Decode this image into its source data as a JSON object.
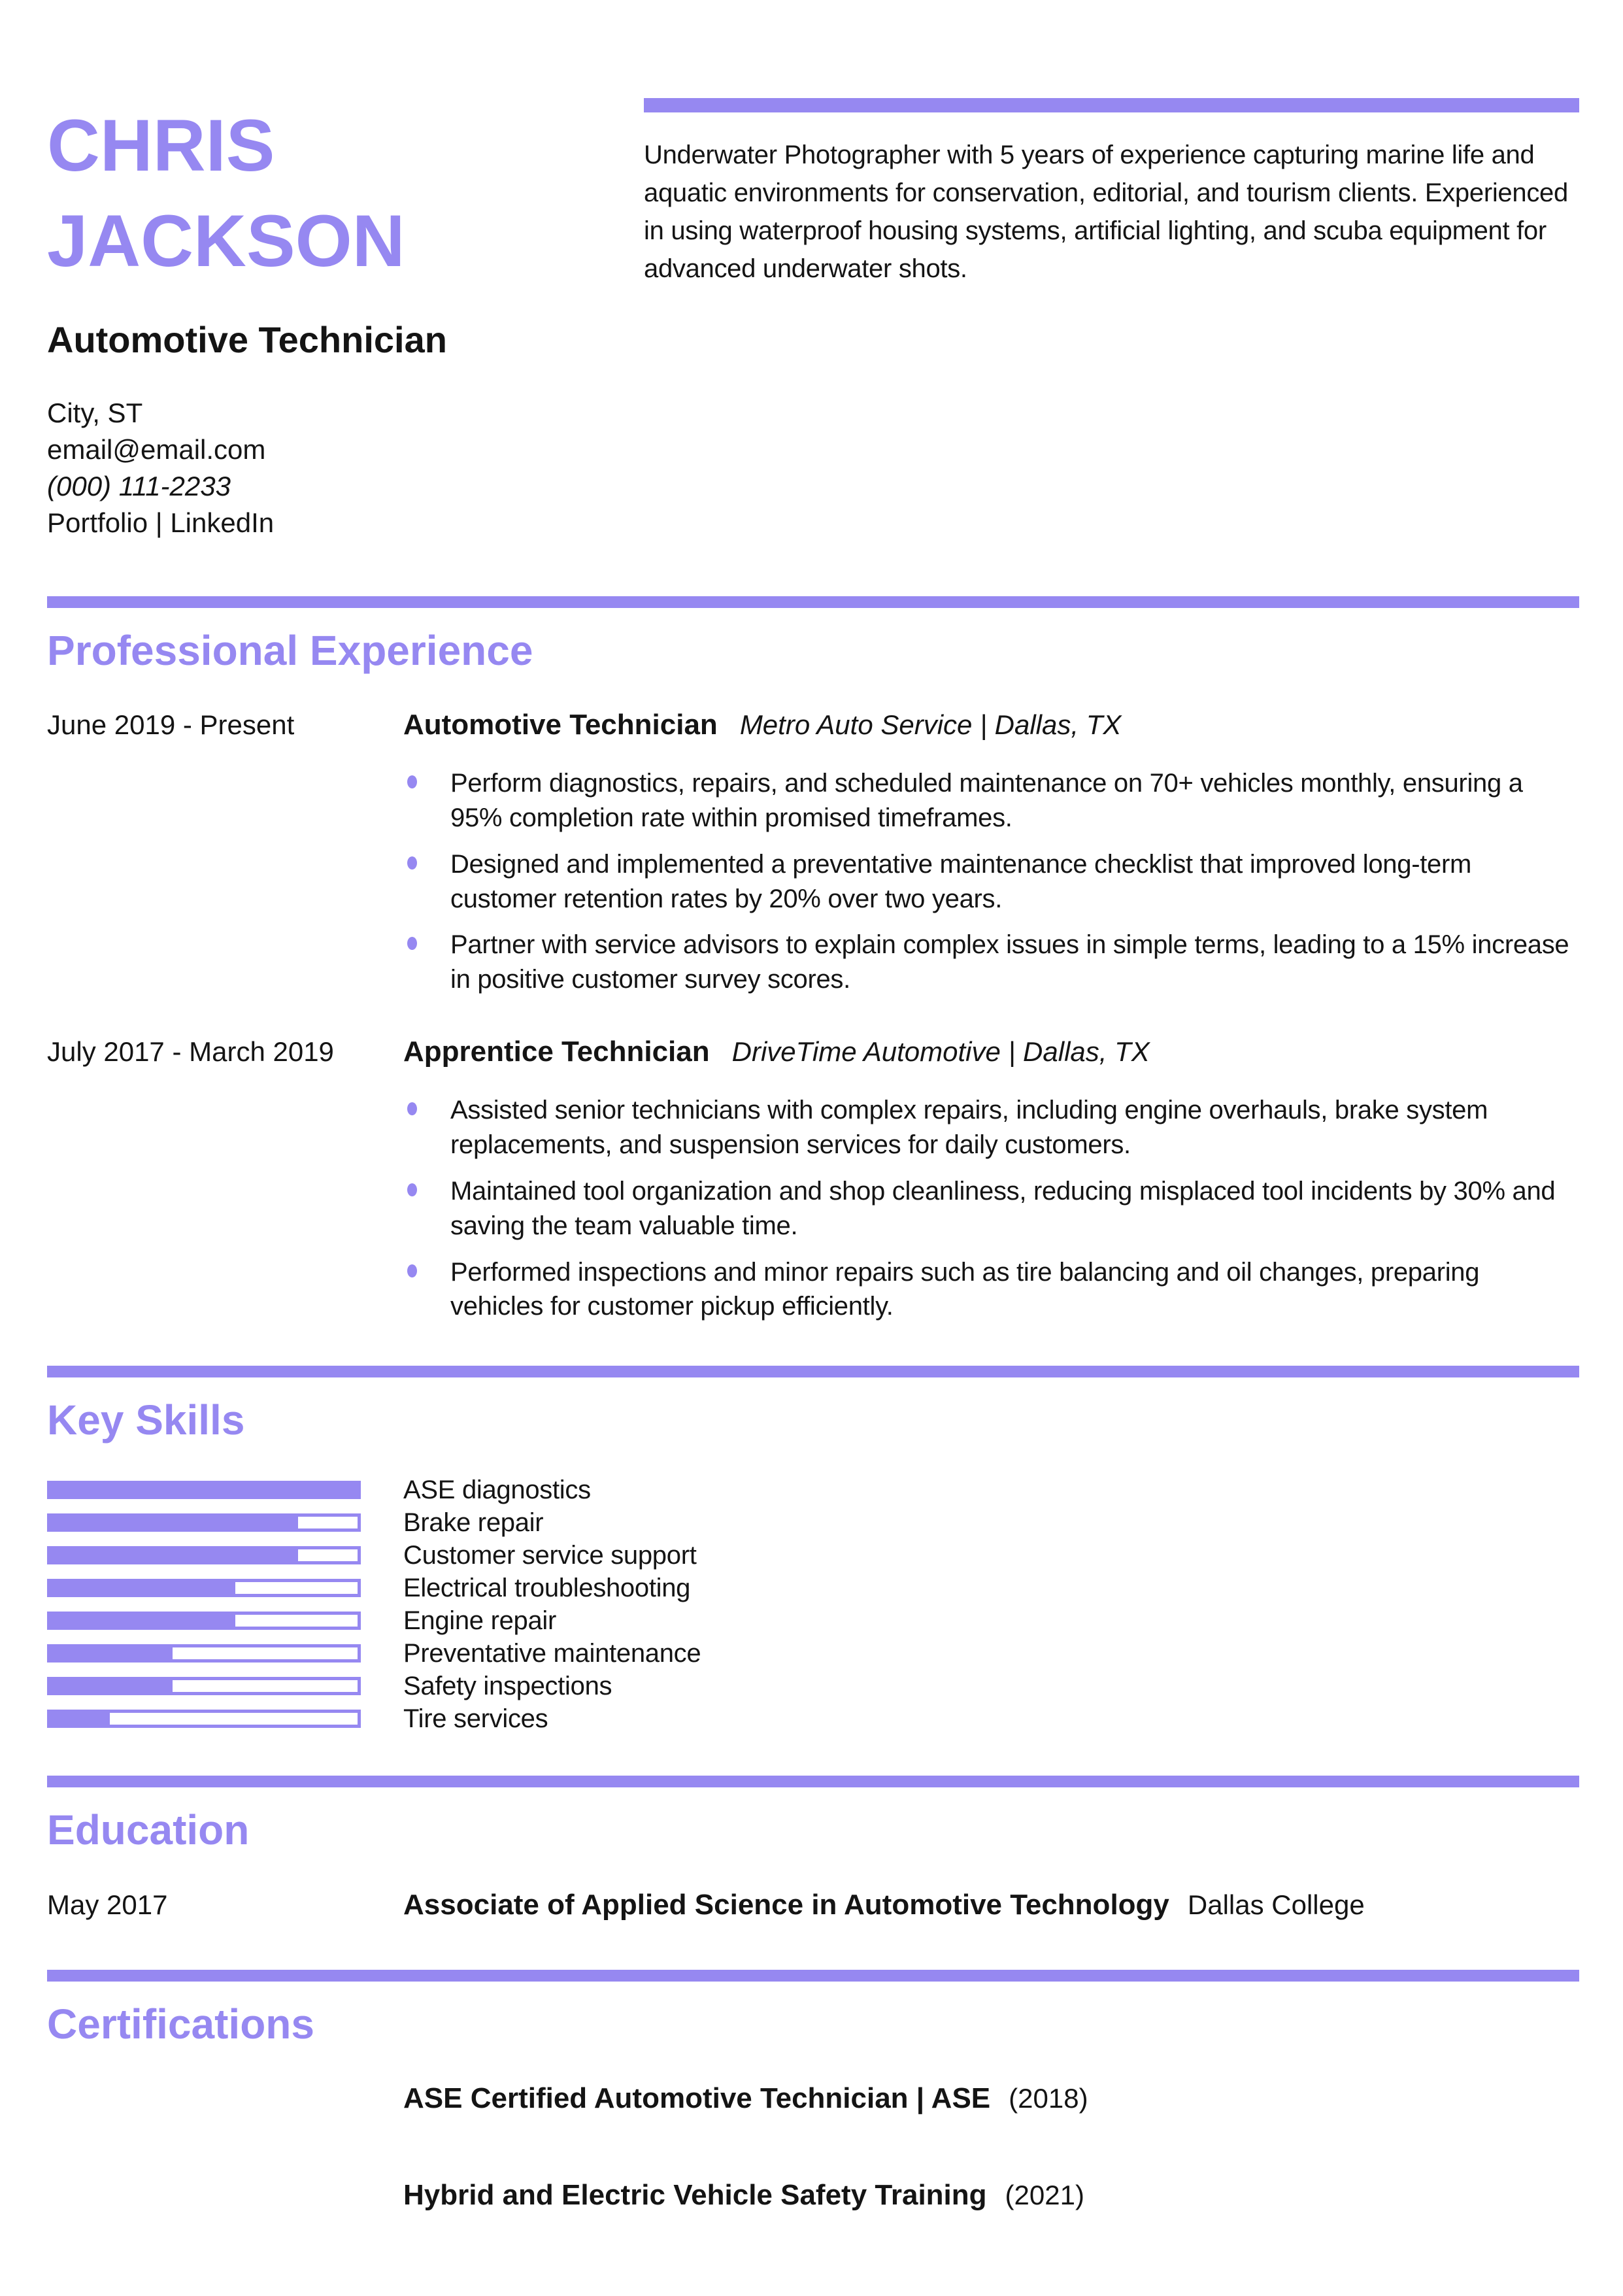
{
  "colors": {
    "accent": "#9688F1",
    "text": "#141414",
    "background": "#ffffff"
  },
  "header": {
    "name_line1": "CHRIS",
    "name_line2": "JACKSON",
    "title": "Automotive Technician",
    "contact": {
      "location": "City, ST",
      "email": "email@email.com",
      "phone": "(000) 111-2233",
      "links": "Portfolio | LinkedIn"
    },
    "summary": "Underwater Photographer with 5 years of experience capturing marine life and aquatic environments for conservation, editorial, and tourism clients. Experienced in using waterproof housing systems, artificial lighting, and scuba equipment for advanced underwater shots."
  },
  "sections": {
    "experience": {
      "heading": "Professional Experience",
      "jobs": [
        {
          "dates": "June 2019 - Present",
          "title": "Automotive Technician",
          "company": "Metro Auto Service | Dallas, TX",
          "bullets": [
            "Perform diagnostics, repairs, and scheduled maintenance on 70+ vehicles monthly, ensuring a 95% completion rate within promised timeframes.",
            "Designed and implemented a preventative maintenance checklist that improved long-term customer retention rates by 20% over two years.",
            "Partner with service advisors to explain complex issues in simple terms, leading to a 15% increase in positive customer survey scores."
          ]
        },
        {
          "dates": "July 2017 - March 2019",
          "title": "Apprentice Technician",
          "company": "DriveTime Automotive | Dallas, TX",
          "bullets": [
            "Assisted senior technicians with complex repairs, including engine overhauls, brake system replacements, and suspension services for daily customers.",
            "Maintained tool organization and shop cleanliness, reducing misplaced tool incidents by 30% and saving the team valuable time.",
            "Performed inspections and minor repairs such as tire balancing and oil changes, preparing vehicles for customer pickup efficiently."
          ]
        }
      ]
    },
    "skills": {
      "heading": "Key Skills",
      "items": [
        {
          "label": "ASE diagnostics",
          "level": 100
        },
        {
          "label": "Brake repair",
          "level": 80
        },
        {
          "label": "Customer service support",
          "level": 80
        },
        {
          "label": "Electrical troubleshooting",
          "level": 60
        },
        {
          "label": "Engine repair",
          "level": 60
        },
        {
          "label": "Preventative maintenance",
          "level": 40
        },
        {
          "label": "Safety inspections",
          "level": 40
        },
        {
          "label": "Tire services",
          "level": 20
        }
      ]
    },
    "education": {
      "heading": "Education",
      "items": [
        {
          "dates": "May 2017",
          "degree": "Associate of Applied Science in Automotive Technology",
          "school": "Dallas College"
        }
      ]
    },
    "certifications": {
      "heading": "Certifications",
      "items": [
        {
          "title": "ASE Certified Automotive Technician | ASE",
          "year": "(2018)"
        },
        {
          "title": "Hybrid and Electric Vehicle Safety Training",
          "year": "(2021)"
        }
      ]
    }
  }
}
